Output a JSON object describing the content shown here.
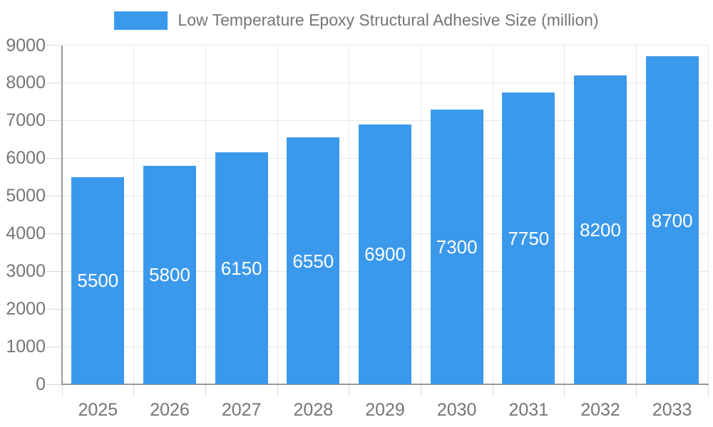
{
  "legend": {
    "label": "Low Temperature Epoxy Structural Adhesive Size (million)"
  },
  "colors": {
    "bar": "#3B99EC",
    "value_label_text": "#FFFFFF",
    "axis_text": "#757575",
    "legend_text": "#757575",
    "gridline": "#E6E6E6",
    "tick": "#D9D9D9",
    "axis_line": "#999999",
    "background": "#FFFFFF"
  },
  "chart_data": {
    "type": "bar",
    "title": "Low Temperature Epoxy Structural Adhesive Size (million)",
    "categories": [
      "2025",
      "2026",
      "2027",
      "2028",
      "2029",
      "2030",
      "2031",
      "2032",
      "2033"
    ],
    "values": [
      5500,
      5800,
      6150,
      6550,
      6900,
      7300,
      7750,
      8200,
      8700
    ],
    "xlabel": "",
    "ylabel": "",
    "ylim": [
      0,
      9000
    ],
    "ytick_step": 1000,
    "grid": true,
    "legend_position": "top",
    "value_label_position": "inside-center"
  }
}
